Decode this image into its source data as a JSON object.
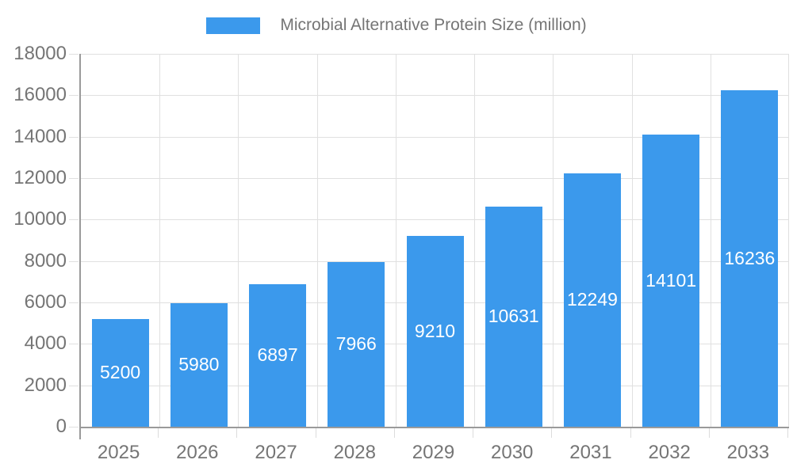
{
  "legend": {
    "label": "Microbial Alternative Protein Size (million)",
    "swatch_color": "#3b99ec"
  },
  "colors": {
    "bar": "#3b99ec",
    "bar_label_text": "#ffffff",
    "grid": "#e0e0e0",
    "axis_line": "#9a9a9a",
    "tick_text": "#757575",
    "legend_text": "#757575",
    "background": "#ffffff"
  },
  "chart_data": {
    "type": "bar",
    "title": "",
    "series_name": "Microbial Alternative Protein Size (million)",
    "categories": [
      "2025",
      "2026",
      "2027",
      "2028",
      "2029",
      "2030",
      "2031",
      "2032",
      "2033"
    ],
    "values": [
      5200,
      5980,
      6897,
      7966,
      9210,
      10631,
      12249,
      14101,
      16236
    ],
    "xlabel": "",
    "ylabel": "",
    "ylim": [
      0,
      18000
    ],
    "y_ticks": [
      0,
      2000,
      4000,
      6000,
      8000,
      10000,
      12000,
      14000,
      16000,
      18000
    ],
    "grid": "on",
    "legend_position": "top",
    "data_labels": "inside-center"
  }
}
